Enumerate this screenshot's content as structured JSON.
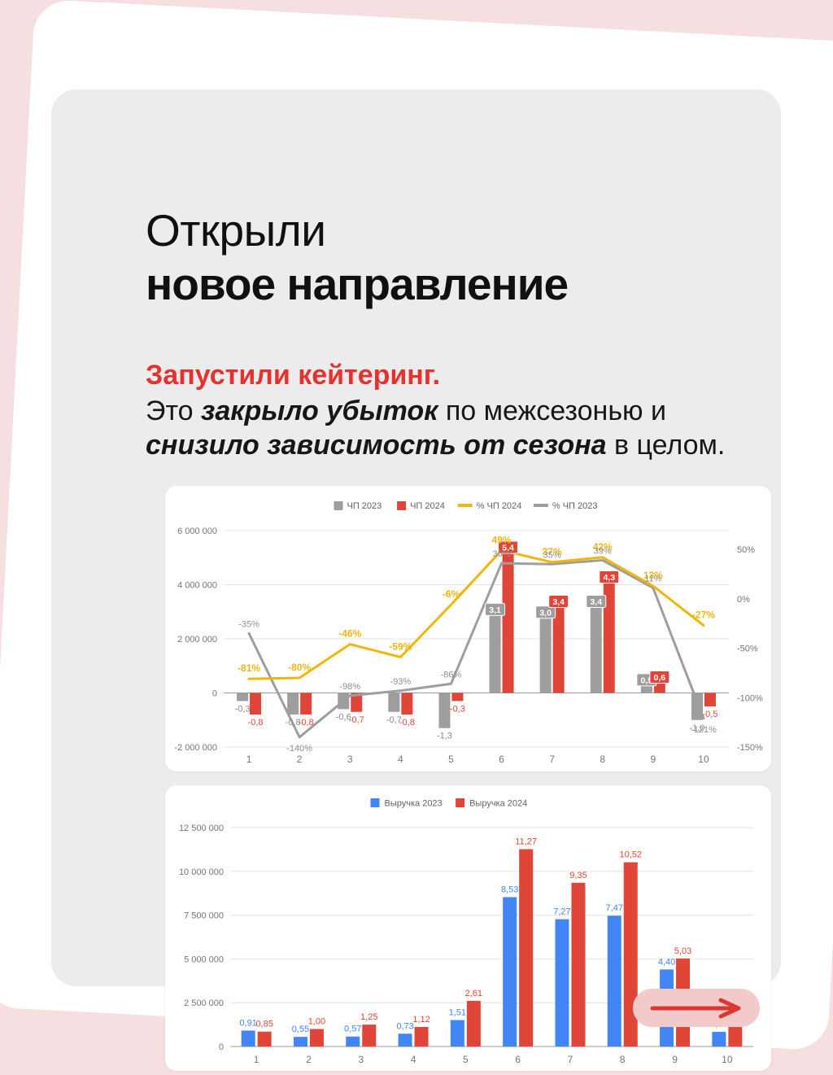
{
  "title": {
    "line1": "Открыли",
    "line2": "новое направление"
  },
  "intro": {
    "heading": "Запустили кейтеринг.",
    "lead_plain": "Это ",
    "lead_bold": "закрыло убыток",
    "lead_rest": " по межсезонью и",
    "line2_bold": "снизило зависимость от сезона",
    "line2_rest": " в целом."
  },
  "nav": {
    "next_icon": "arrow-right"
  },
  "colors": {
    "background_pink": "#f6dfe0",
    "card_gray": "#ececec",
    "accent_red": "#e5322e",
    "bar_gray": "#9e9e9e",
    "bar_red": "#e04537",
    "bar_blue": "#4285f4",
    "line_yellow": "#f0b60f"
  },
  "chart_data": [
    {
      "type": "combo",
      "title": "",
      "legend_position": "top",
      "grid": true,
      "categories": [
        "1",
        "2",
        "3",
        "4",
        "5",
        "6",
        "7",
        "8",
        "9",
        "10"
      ],
      "left_axis": {
        "unit": "RUB",
        "scale": "millions",
        "min": -2,
        "max": 6,
        "ticks": [
          {
            "v": 6,
            "label": "6 000 000"
          },
          {
            "v": 4,
            "label": "4 000 000"
          },
          {
            "v": 2,
            "label": "2 000 000"
          },
          {
            "v": 0,
            "label": "0"
          },
          {
            "v": -2,
            "label": "-2 000 000"
          }
        ]
      },
      "right_axis": {
        "unit": "%",
        "min": -150,
        "max": 69,
        "ticks": [
          {
            "v": 50,
            "label": "50%"
          },
          {
            "v": 0,
            "label": "0%"
          },
          {
            "v": -50,
            "label": "-50%"
          },
          {
            "v": -100,
            "label": "-100%"
          },
          {
            "v": -150,
            "label": "-150%"
          }
        ]
      },
      "series": [
        {
          "name": "ЧП 2023",
          "type": "bar",
          "color": "#9e9e9e",
          "values": [
            -0.3,
            -0.8,
            -0.6,
            -0.7,
            -1.3,
            3.1,
            3.0,
            3.4,
            0.5,
            -1.0
          ],
          "labels": [
            "-0,3",
            "-0,8",
            "-0,6",
            "-0,7",
            "-1,3",
            "3,1",
            "3,0",
            "3,4",
            "0,5",
            "-1,0"
          ]
        },
        {
          "name": "ЧП 2024",
          "type": "bar",
          "color": "#e04537",
          "values": [
            -0.8,
            -0.8,
            -0.7,
            -0.8,
            -0.3,
            5.4,
            3.4,
            4.3,
            0.6,
            -0.5
          ],
          "labels": [
            "-0,8",
            "-0,8",
            "-0,7",
            "-0,8",
            "-0,3",
            "5,4",
            "3,4",
            "4,3",
            "0,6",
            "-0,5"
          ]
        },
        {
          "name": "% ЧП 2024",
          "type": "line",
          "color": "#f0b60f",
          "values": [
            -81,
            -80,
            -46,
            -59,
            -6,
            49,
            37,
            42,
            13,
            -27
          ],
          "labels": [
            "-81%",
            "-80%",
            "-46%",
            "-59%",
            "-6%",
            "49%",
            "37%",
            "42%",
            "13%",
            "-27%"
          ]
        },
        {
          "name": "% ЧП 2023",
          "type": "line",
          "color": "#9e9e9e",
          "values": [
            -35,
            -140,
            -98,
            -93,
            -86,
            36,
            35,
            39,
            11,
            -121
          ],
          "labels": [
            "-35%",
            "-140%",
            "-98%",
            "-93%",
            "-86%",
            "36%",
            "35%",
            "39%",
            "11%",
            "-121%"
          ]
        }
      ]
    },
    {
      "type": "bar",
      "title": "",
      "legend_position": "top",
      "grid": true,
      "categories": [
        "1",
        "2",
        "3",
        "4",
        "5",
        "6",
        "7",
        "8",
        "9",
        "10"
      ],
      "y_axis": {
        "unit": "RUB",
        "scale": "millions",
        "min": 0,
        "max": 12.5,
        "ticks": [
          {
            "v": 12.5,
            "label": "12 500 000"
          },
          {
            "v": 10,
            "label": "10 000 000"
          },
          {
            "v": 7.5,
            "label": "7 500 000"
          },
          {
            "v": 5,
            "label": "5 000 000"
          },
          {
            "v": 2.5,
            "label": "2 500 000"
          },
          {
            "v": 0,
            "label": "0"
          }
        ]
      },
      "series": [
        {
          "name": "Выручка 2023",
          "color": "#4285f4",
          "values": [
            0.91,
            0.55,
            0.57,
            0.73,
            1.51,
            8.53,
            7.27,
            7.47,
            4.4,
            0.84
          ],
          "labels": [
            "0,91",
            "0,55",
            "0,57",
            "0,73",
            "1,51",
            "8,53",
            "7,27",
            "7,47",
            "4,40",
            "0,84"
          ]
        },
        {
          "name": "Выручка 2024",
          "color": "#e04537",
          "values": [
            0.85,
            1.0,
            1.25,
            1.12,
            2.61,
            11.27,
            9.35,
            10.52,
            5.03,
            1.78
          ],
          "labels": [
            "0,85",
            "1,00",
            "1,25",
            "1,12",
            "2,61",
            "11,27",
            "9,35",
            "10,52",
            "5,03",
            "1,78"
          ]
        }
      ]
    }
  ]
}
